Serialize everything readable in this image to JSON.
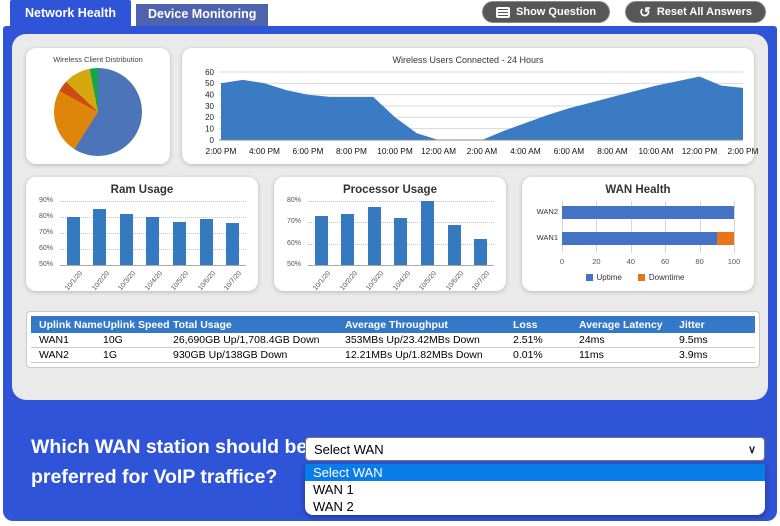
{
  "header": {
    "tabs": [
      {
        "label": "Network Health",
        "active": true
      },
      {
        "label": "Device Monitoring",
        "active": false
      }
    ],
    "buttons": [
      {
        "label": "Show Question",
        "icon": "list-icon"
      },
      {
        "label": "Reset All Answers",
        "icon": "reset-icon"
      }
    ]
  },
  "colors": {
    "body_blue": "#3054D8",
    "inactive_tab_blue": "#4E62AE",
    "panel_gray": "#EAEAEA",
    "table_header_blue": "#3478C8",
    "bar_blue": "#3579BE",
    "area_blue": "#3A7BC4",
    "uptime_blue": "#4472C4",
    "downtime_orange": "#E8751A",
    "option_highlight_blue": "#0A7CE8",
    "button_gray": "#575757"
  },
  "chart_data": [
    {
      "type": "pie",
      "title": "Wireless Client Distribution",
      "slices": [
        {
          "value": 59,
          "color": "#4C74B9"
        },
        {
          "value": 24,
          "color": "#DE860B"
        },
        {
          "value": 4,
          "color": "#CC4A14"
        },
        {
          "value": 10,
          "color": "#D3A70D"
        },
        {
          "value": 3,
          "color": "#12A74D"
        }
      ]
    },
    {
      "type": "area",
      "title": "Wireless Users Connected - 24 Hours",
      "xtick_labels": [
        "2:00 PM",
        "4:00 PM",
        "6:00 PM",
        "8:00 PM",
        "10:00 PM",
        "12:00 AM",
        "2:00 AM",
        "4:00 AM",
        "6:00 AM",
        "8:00 AM",
        "10:00 AM",
        "12:00 PM",
        "2:00 PM"
      ],
      "values": [
        50,
        53,
        50,
        44,
        40,
        38,
        38,
        38,
        20,
        6,
        0,
        0,
        0,
        8,
        15,
        22,
        28,
        33,
        38,
        43,
        48,
        52,
        56,
        48,
        46
      ],
      "ylim": [
        0,
        60
      ],
      "yticks": [
        0,
        10,
        20,
        30,
        40,
        50,
        60
      ],
      "fill_color": "#3A7BC4"
    },
    {
      "type": "bar",
      "title": "Ram Usage",
      "categories": [
        "10/1/20",
        "10/2/20",
        "10/3/20",
        "10/4/20",
        "10/5/20",
        "10/6/20",
        "10/7/20"
      ],
      "values": [
        80,
        85,
        82,
        80,
        77,
        79,
        76
      ],
      "ylim": [
        50,
        90
      ],
      "yticks": [
        50,
        60,
        70,
        80,
        90
      ],
      "ytick_suffix": "%",
      "bar_color": "#3579BE"
    },
    {
      "type": "bar",
      "title": "Processor Usage",
      "categories": [
        "10/1/20",
        "10/2/20",
        "10/3/20",
        "10/4/20",
        "10/5/20",
        "10/6/20",
        "10/7/20"
      ],
      "values": [
        73,
        74,
        77,
        72,
        80,
        69,
        62
      ],
      "ylim": [
        50,
        80
      ],
      "yticks": [
        50,
        60,
        70,
        80
      ],
      "ytick_suffix": "%",
      "bar_color": "#3579BE"
    },
    {
      "type": "bar-horizontal-stacked",
      "title": "WAN Health",
      "categories": [
        "WAN2",
        "WAN1"
      ],
      "series": [
        {
          "name": "Uptime",
          "color": "#4472C4",
          "values": [
            100,
            90
          ]
        },
        {
          "name": "Downtime",
          "color": "#E8751A",
          "values": [
            0,
            10
          ]
        }
      ],
      "xlim": [
        0,
        100
      ],
      "xticks": [
        0,
        20,
        40,
        60,
        80,
        100
      ],
      "legend_position": "bottom"
    }
  ],
  "table": {
    "columns": [
      "Uplink Name",
      "Uplink Speed",
      "Total Usage",
      "Average Throughput",
      "Loss",
      "Average Latency",
      "Jitter"
    ],
    "rows": [
      [
        "WAN1",
        "10G",
        "26,690GB Up/1,708.4GB Down",
        "353MBs Up/23.42MBs Down",
        "2.51%",
        "24ms",
        "9.5ms"
      ],
      [
        "WAN2",
        "1G",
        "930GB Up/138GB Down",
        "12.21MBs Up/1.82MBs Down",
        "0.01%",
        "11ms",
        "3.9ms"
      ]
    ]
  },
  "question": {
    "text": "Which WAN station should be preferred for VoIP traffice?",
    "dropdown": {
      "value": "Select WAN",
      "options": [
        "Select WAN",
        "WAN 1",
        "WAN 2"
      ],
      "highlighted_option": "Select WAN",
      "chevron_icon": "chevron-down-icon"
    }
  }
}
